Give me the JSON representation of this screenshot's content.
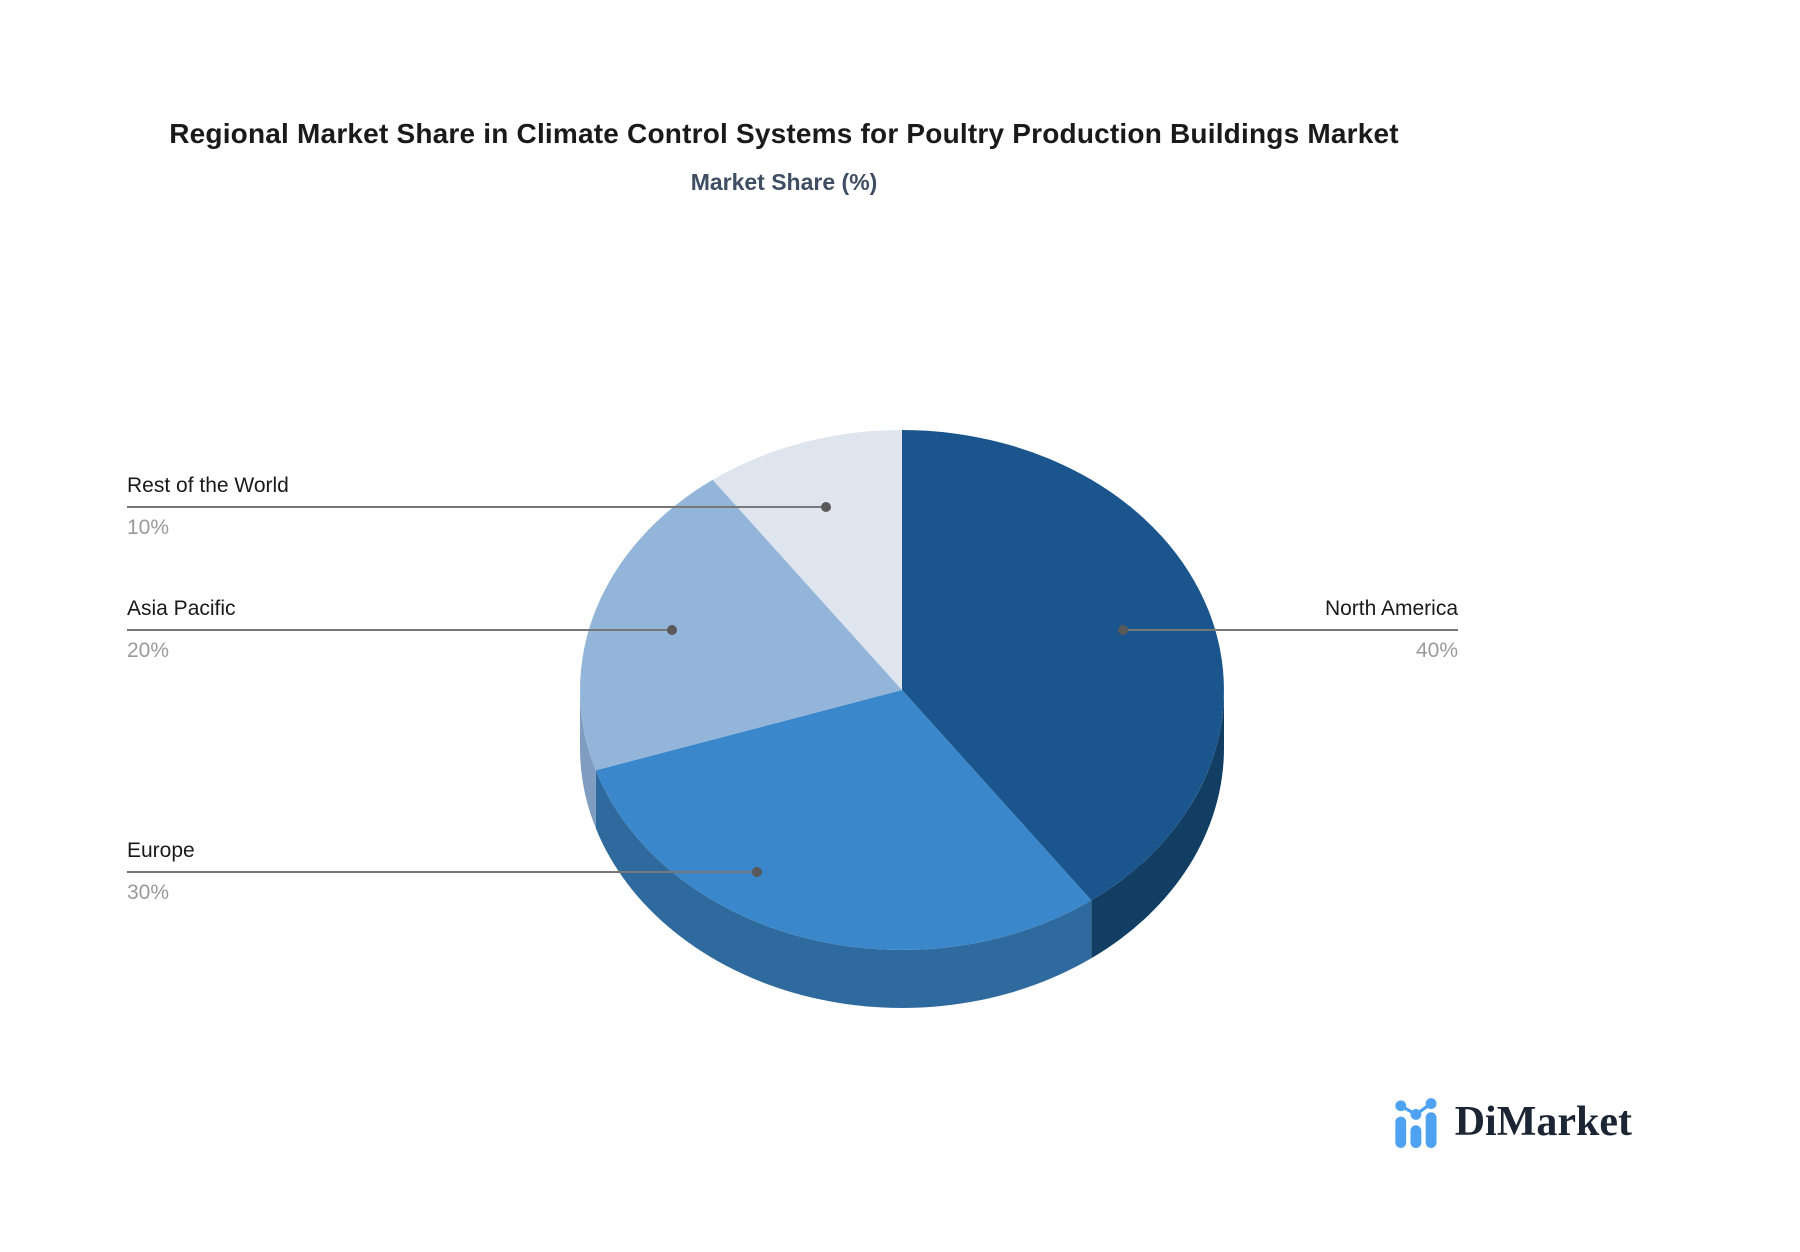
{
  "header": {
    "title": "Regional Market Share in Climate Control Systems for Poultry Production Buildings Market",
    "subtitle": "Market Share (%)"
  },
  "chart_data": {
    "type": "pie",
    "effect": "3d",
    "title": "Regional Market Share in Climate Control Systems for Poultry Production Buildings Market",
    "subtitle": "Market Share (%)",
    "unit": "%",
    "labels": [
      "North America",
      "Europe",
      "Asia Pacific",
      "Rest of the World"
    ],
    "values": [
      40,
      30,
      20,
      10
    ],
    "start_angle_deg": 0,
    "direction": "clockwise",
    "colors": [
      "#1A568D",
      "#3A88CB",
      "#92B5D9",
      "#DFE5EE"
    ],
    "side_colors": [
      "#123E63",
      "#2F6A9E",
      "#7E9DC0",
      "#B9C6DA"
    ],
    "leader_line_color": "#777777",
    "leader_dot_color": "#595959",
    "label_color": "#1a1a1a",
    "value_color": "#9a9a9a",
    "legend": "none"
  },
  "callouts": [
    {
      "id": "rest-of-the-world",
      "label": "Rest of the World",
      "value": "10%"
    },
    {
      "id": "asia-pacific",
      "label": "Asia Pacific",
      "value": "20%"
    },
    {
      "id": "europe",
      "label": "Europe",
      "value": "30%"
    },
    {
      "id": "north-america",
      "label": "North America",
      "value": "40%"
    }
  ],
  "logo": {
    "text": "DiMarket",
    "accent_color": "#4FA2F2",
    "text_color": "#1B2534"
  }
}
